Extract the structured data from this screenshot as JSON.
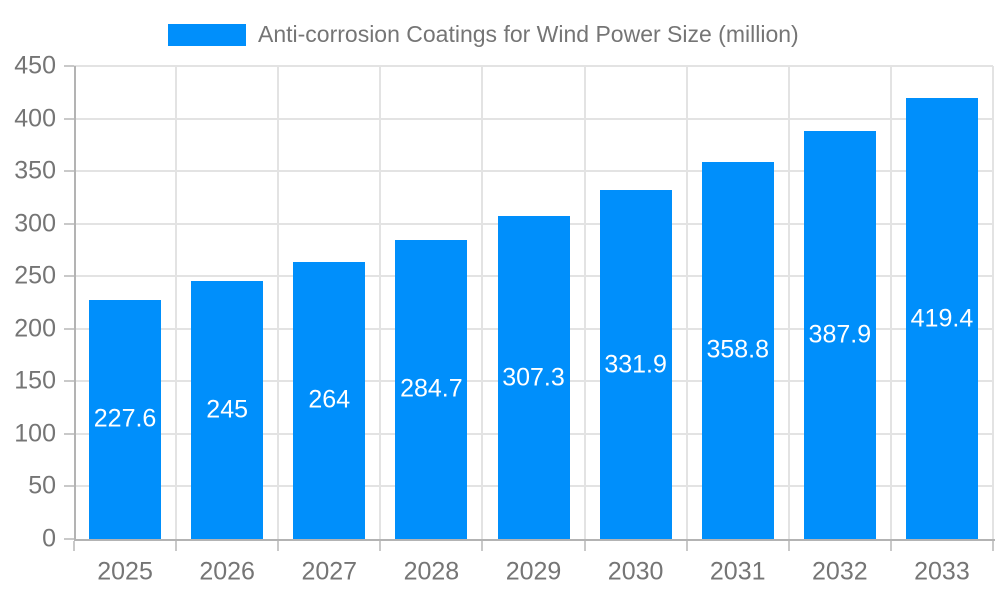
{
  "chart_data": {
    "type": "bar",
    "title": "Anti-corrosion Coatings for Wind Power Size (million)",
    "categories": [
      "2025",
      "2026",
      "2027",
      "2028",
      "2029",
      "2030",
      "2031",
      "2032",
      "2033"
    ],
    "values": [
      227.6,
      245,
      264,
      284.7,
      307.3,
      331.9,
      358.8,
      387.9,
      419.4
    ],
    "value_labels": [
      "227.6",
      "245",
      "264",
      "284.7",
      "307.3",
      "331.9",
      "358.8",
      "387.9",
      "419.4"
    ],
    "xlabel": "",
    "ylabel": "",
    "ylim": [
      0,
      450
    ],
    "yticks": [
      0,
      50,
      100,
      150,
      200,
      250,
      300,
      350,
      400,
      450
    ],
    "grid": true,
    "legend_position": "top",
    "colors": {
      "bar": "#008FFB",
      "value_label": "#ffffff",
      "axis_text": "#757575",
      "grid_line": "#e3e3e3",
      "axis_line": "#b3b3b3",
      "tick": "#c9c9c9",
      "background": "#ffffff"
    }
  }
}
